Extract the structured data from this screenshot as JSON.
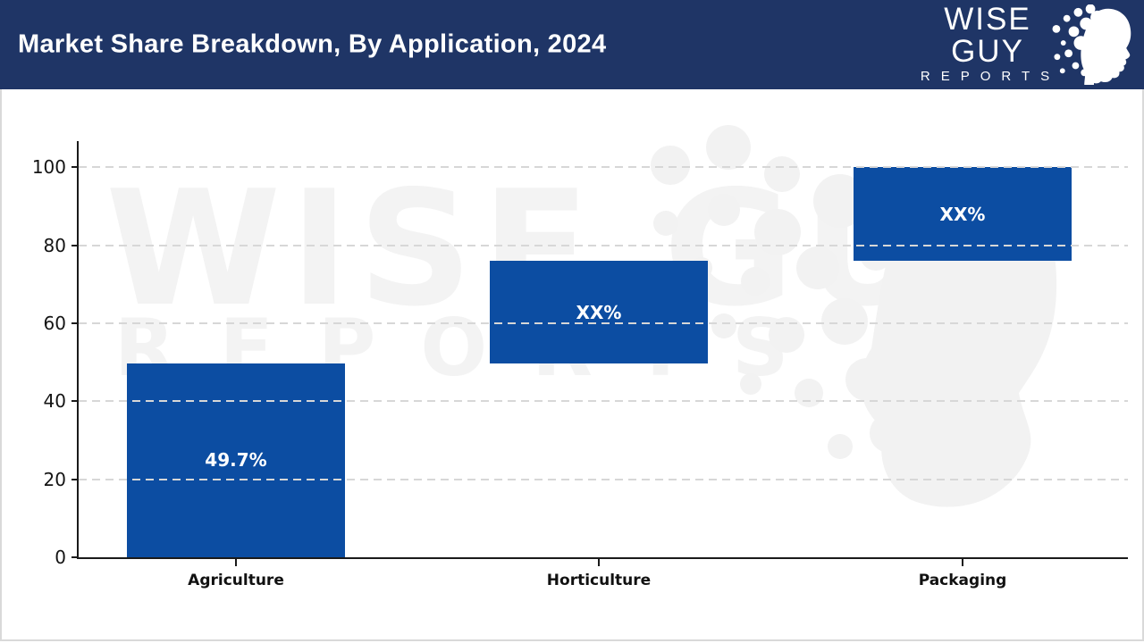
{
  "header": {
    "title": "Market Share Breakdown, By Application, 2024",
    "bg_color": "#1f3566",
    "logo": {
      "line1": "WISE GUY",
      "line2": "REPORTS"
    }
  },
  "watermark": {
    "line1": "WISE GUY",
    "line2": "REPORTS"
  },
  "chart_data": {
    "type": "bar",
    "subtype": "waterfall",
    "title": "Market Share Breakdown, By Application, 2024",
    "categories": [
      "Agriculture",
      "Horticulture",
      "Packaging"
    ],
    "segments": [
      {
        "category": "Agriculture",
        "start": 0,
        "end": 49.7,
        "label": "49.7%"
      },
      {
        "category": "Horticulture",
        "start": 49.7,
        "end": 76,
        "label": "XX%"
      },
      {
        "category": "Packaging",
        "start": 76,
        "end": 100,
        "label": "XX%"
      }
    ],
    "yticks": [
      0,
      20,
      40,
      60,
      80,
      100
    ],
    "ylim": [
      0,
      105
    ],
    "xlabel": "",
    "ylabel": "",
    "grid": "horizontal-dashed-over-bars",
    "legend": "none",
    "bar_color": "#0c4da2",
    "bar_label_color": "#ffffff",
    "axis_color": "#1a1a1a",
    "grid_color": "#d7d7d7"
  }
}
